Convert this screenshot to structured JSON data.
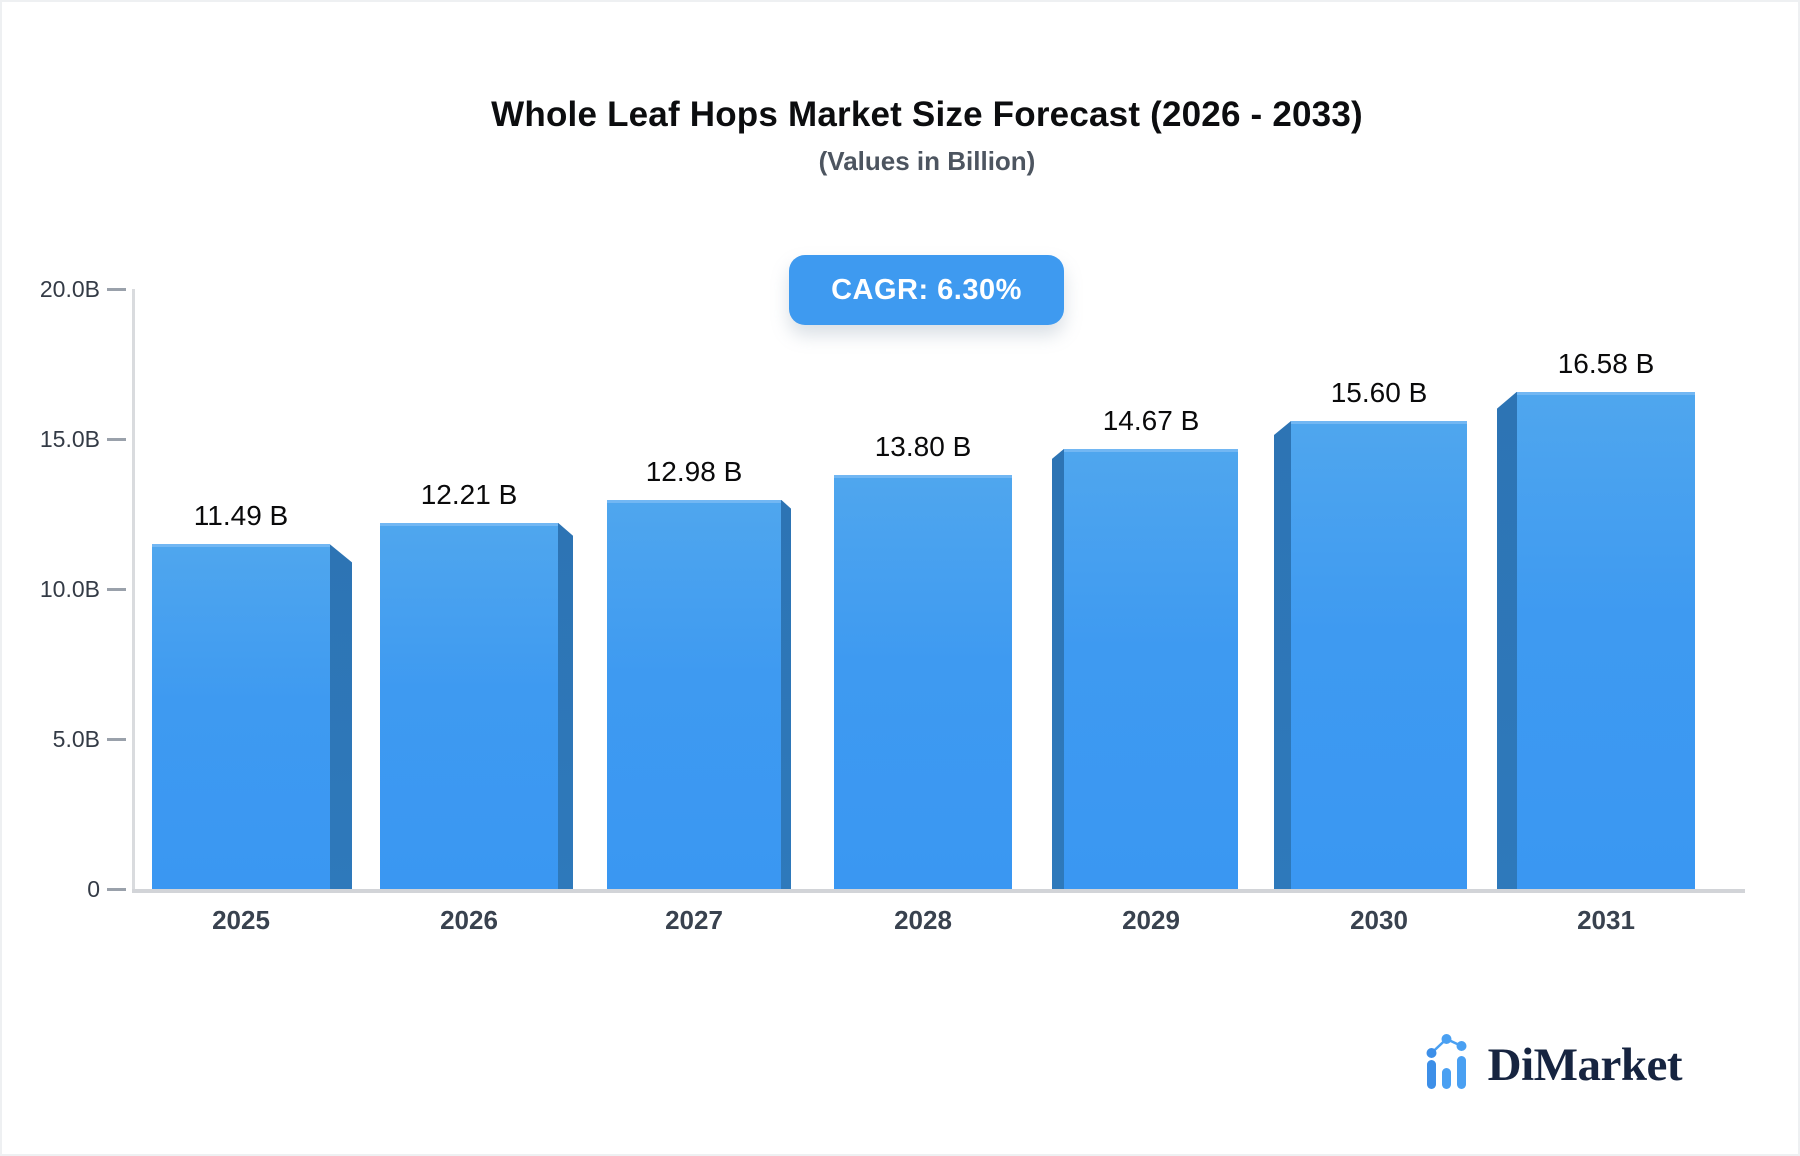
{
  "header": {
    "title": "Whole Leaf Hops Market Size Forecast (2026 - 2033)",
    "subtitle": "(Values in Billion)",
    "cagr_badge": "CAGR: 6.30%"
  },
  "chart_data": {
    "type": "bar",
    "title": "Whole Leaf Hops Market Size Forecast (2026 - 2033)",
    "subtitle": "(Values in Billion)",
    "cagr": "6.30%",
    "categories": [
      "2025",
      "2026",
      "2027",
      "2028",
      "2029",
      "2030",
      "2031"
    ],
    "values": [
      11.49,
      12.21,
      12.98,
      13.8,
      14.67,
      15.6,
      16.58
    ],
    "value_labels": [
      "11.49 B",
      "12.21 B",
      "12.98 B",
      "13.80 B",
      "14.67 B",
      "15.60 B",
      "16.58 B"
    ],
    "xlabel": "",
    "ylabel": "",
    "ylim": [
      0,
      20
    ],
    "yticks": [
      "20.0B",
      "15.0B",
      "10.0B",
      "5.0B",
      "0"
    ],
    "grid": false,
    "legend": false,
    "bar_color": "#3e9af0",
    "bar_side_color": "#2e77b8",
    "axis_color": "#d2d4d8"
  },
  "branding": {
    "logo_text": "DiMarket",
    "logo_icon": "bar-chart-trend-icon",
    "logo_text_color": "#162440",
    "logo_icon_color": "#4498f2"
  }
}
